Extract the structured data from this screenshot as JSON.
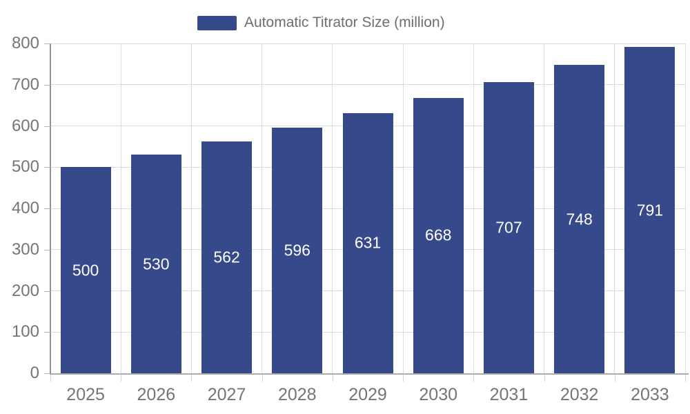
{
  "chart_data": {
    "type": "bar",
    "title": "Automatic Titrator Size (million)",
    "legend": {
      "label": "Automatic Titrator Size (million)",
      "position": "top"
    },
    "categories": [
      "2025",
      "2026",
      "2027",
      "2028",
      "2029",
      "2030",
      "2031",
      "2032",
      "2033"
    ],
    "values": [
      500,
      530,
      562,
      596,
      631,
      668,
      707,
      748,
      791
    ],
    "series": [
      {
        "name": "Automatic Titrator Size (million)",
        "values": [
          500,
          530,
          562,
          596,
          631,
          668,
          707,
          748,
          791
        ]
      }
    ],
    "xlabel": "",
    "ylabel": "",
    "ylim": [
      0,
      800
    ],
    "yticks": [
      0,
      100,
      200,
      300,
      400,
      500,
      600,
      700,
      800
    ],
    "grid": true,
    "colors": {
      "bar": "#36498a",
      "value_label": "#ffffff",
      "tick_label": "#757575",
      "legend_text": "#6e6e6e",
      "grid_line": "#dcdcdc",
      "y_axis_line": "#919191",
      "x_axis_line": "#ababab",
      "y_tick": "#b5b5b5",
      "x_tick": "#d2d2d2",
      "background": "#ffffff"
    }
  }
}
